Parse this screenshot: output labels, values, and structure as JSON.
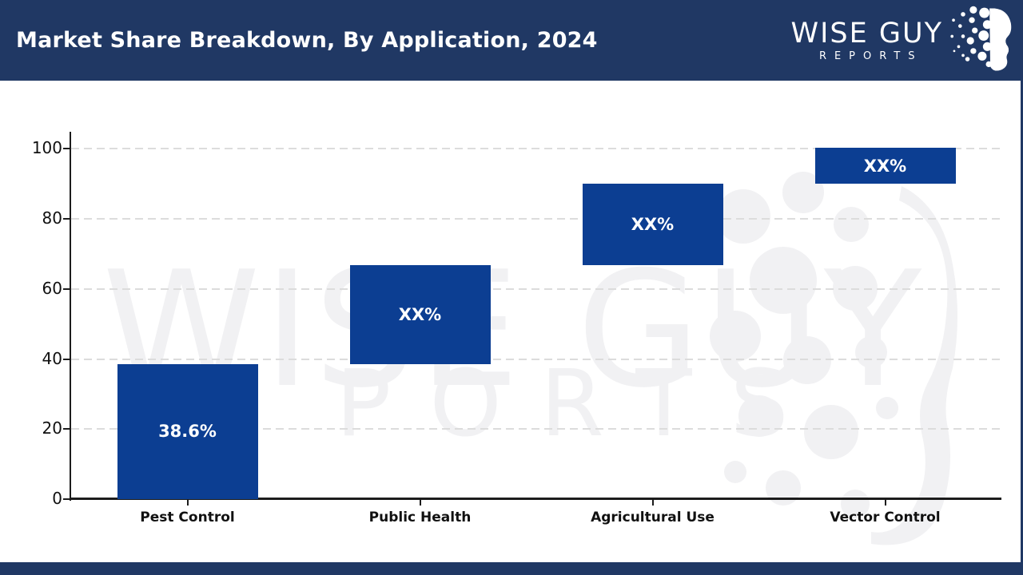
{
  "header": {
    "title": "Market Share Breakdown, By Application, 2024",
    "logo": {
      "line1": "WISE GUY",
      "line2": "REPORTS"
    }
  },
  "watermark": {
    "line1": "WISE GUY",
    "line2": "PORTS"
  },
  "colors": {
    "header_navy": "#203864",
    "bar_blue": "#0c3e92",
    "gridline_gray": "#dcdcdc",
    "watermark_gray": "#f1f1f3",
    "axis_black": "#1c1c1c"
  },
  "chart_data": {
    "type": "bar",
    "variant": "waterfall",
    "title": "Market Share Breakdown, By Application, 2024",
    "categories": [
      "Pest Control",
      "Public Health",
      "Agricultural Use",
      "Vector Control"
    ],
    "bar_bases": [
      0,
      38.6,
      66.7,
      90
    ],
    "bar_tops": [
      38.6,
      66.7,
      90,
      100.2
    ],
    "segment_values_estimated": [
      38.6,
      28.1,
      23.3,
      10.2
    ],
    "bar_labels": [
      "38.6%",
      "XX%",
      "XX%",
      "XX%"
    ],
    "ylabel": "",
    "xlabel": "",
    "yticks": [
      0,
      20,
      40,
      60,
      80,
      100
    ],
    "ylim": [
      0,
      105
    ],
    "grid": "horizontal-dashed",
    "legend": "none",
    "bar_color": "#0c3e92",
    "bar_label_color": "#ffffff"
  }
}
